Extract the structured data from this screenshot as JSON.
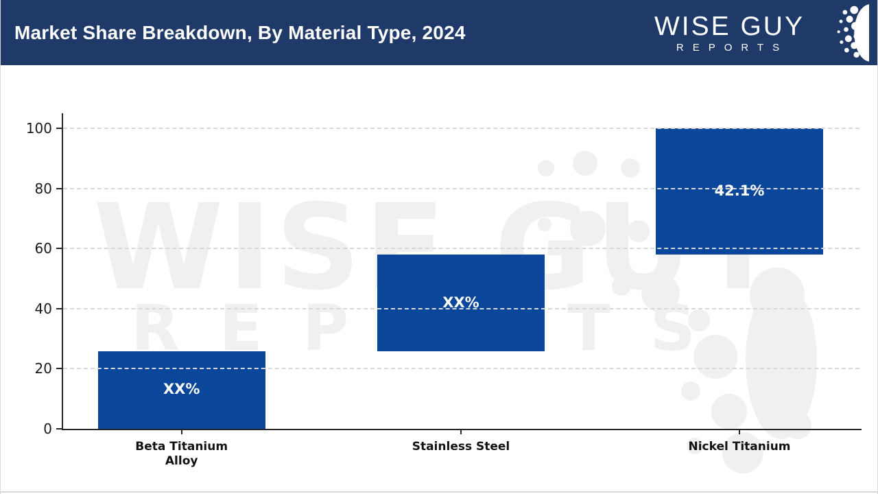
{
  "header": {
    "title": "Market Share Breakdown, By Material Type, 2024",
    "logo": {
      "line1": "WISE GUY",
      "line2": "REPORTS"
    }
  },
  "watermark": {
    "line1": "WISE GUY",
    "line2": "REPORTS"
  },
  "chart_data": {
    "type": "bar",
    "subtype": "floating-waterfall",
    "title": "Market Share Breakdown, By Material Type, 2024",
    "categories": [
      "Beta Titanium Alloy",
      "Stainless Steel",
      "Nickel Titanium"
    ],
    "category_label_lines": [
      [
        "Beta Titanium",
        "Alloy"
      ],
      [
        "Stainless Steel"
      ],
      [
        "Nickel Titanium"
      ]
    ],
    "bars": [
      {
        "category": "Beta Titanium Alloy",
        "start": 0,
        "end": 25.8,
        "label": "XX%"
      },
      {
        "category": "Stainless Steel",
        "start": 25.8,
        "end": 57.9,
        "label": "XX%"
      },
      {
        "category": "Nickel Titanium",
        "start": 57.9,
        "end": 100,
        "label": "42.1%",
        "value": 42.1
      }
    ],
    "xlabel": "",
    "ylabel": "",
    "ylim": [
      0,
      105
    ],
    "yticks": [
      0,
      20,
      40,
      60,
      80,
      100
    ],
    "grid": "horizontal-dashed",
    "legend": "none",
    "colors": {
      "bar": "#0A4699",
      "bar_label": "#ffffff",
      "header_bg": "#1F3A68",
      "axis": "#262626",
      "gridline": "#d8d8d8",
      "tick_label": "#1a1a1a",
      "watermark": "#f0f0f2"
    }
  }
}
